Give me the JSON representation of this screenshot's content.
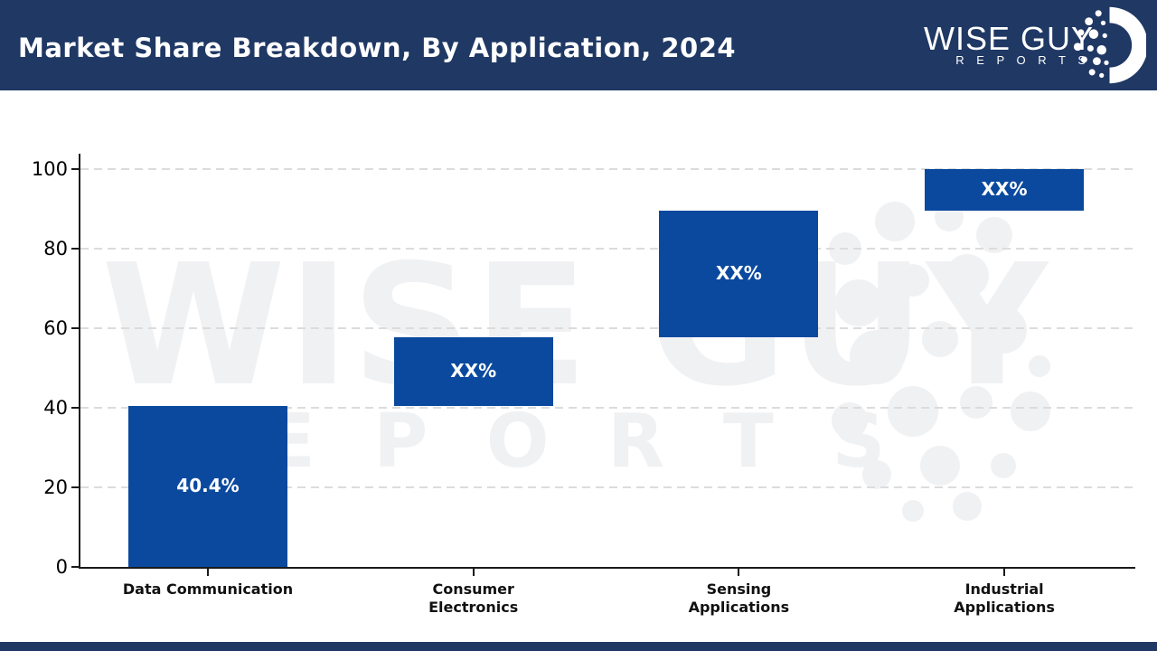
{
  "header": {
    "title": "Market Share Breakdown, By Application, 2024",
    "logo": {
      "line1": "WISE GUY",
      "line2": "R E P O R T S"
    }
  },
  "watermark": {
    "line1": "WISE GUY",
    "line2": "R E P O R T S"
  },
  "colors": {
    "navy_band": "#1f3864",
    "bar_blue": "#0b499e",
    "gridline": "#dcdcdc",
    "watermark_gray": "#f0f1f3",
    "bar_label_white": "#ffffff"
  },
  "chart_data": {
    "type": "bar",
    "subtype": "waterfall",
    "title": "Market Share Breakdown, By Application, 2024",
    "categories": [
      "Data Communication",
      "Consumer Electronics",
      "Sensing Applications",
      "Industrial Applications"
    ],
    "x_label_lines": [
      [
        "Data Communication"
      ],
      [
        "Consumer",
        "Electronics"
      ],
      [
        "Sensing",
        "Applications"
      ],
      [
        "Industrial",
        "Applications"
      ]
    ],
    "segments": [
      {
        "category": "Data Communication",
        "start": 0,
        "end": 40.4,
        "label": "40.4%"
      },
      {
        "category": "Consumer Electronics",
        "start": 40.4,
        "end": 57.7,
        "label": "XX%"
      },
      {
        "category": "Sensing Applications",
        "start": 57.7,
        "end": 89.5,
        "label": "XX%"
      },
      {
        "category": "Industrial Applications",
        "start": 89.5,
        "end": 100,
        "label": "XX%"
      }
    ],
    "ylim": [
      0,
      100
    ],
    "yticks": [
      0,
      20,
      40,
      60,
      80,
      100
    ],
    "grid": "horizontal-dashed",
    "legend": "none",
    "xlabel": "",
    "ylabel": ""
  }
}
